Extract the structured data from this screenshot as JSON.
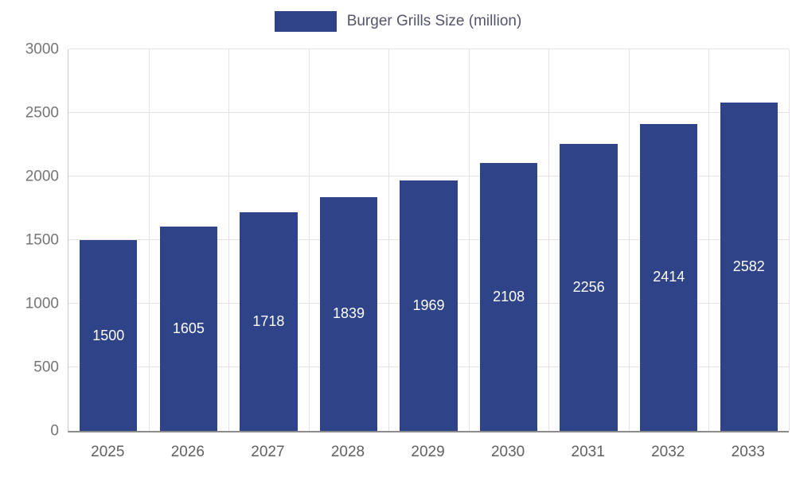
{
  "legend": {
    "label": "Burger Grills Size (million)"
  },
  "colors": {
    "bar": "#2F4488",
    "grid": "#E3E3E3",
    "axis": "#8C8C8C",
    "tick_text": "#757575",
    "bar_label": "#FFFFFF",
    "legend_text": "#55556A"
  },
  "chart_data": {
    "type": "bar",
    "title": "",
    "xlabel": "",
    "ylabel": "",
    "categories": [
      "2025",
      "2026",
      "2027",
      "2028",
      "2029",
      "2030",
      "2031",
      "2032",
      "2033"
    ],
    "series": [
      {
        "name": "Burger Grills Size (million)",
        "values": [
          1500,
          1605,
          1718,
          1839,
          1969,
          2108,
          2256,
          2414,
          2582
        ]
      }
    ],
    "ylim": [
      0,
      3000
    ],
    "yticks": [
      0,
      500,
      1000,
      1500,
      2000,
      2500,
      3000
    ],
    "grid": true,
    "legend_position": "top",
    "bar_value_labels": "inside-center"
  }
}
